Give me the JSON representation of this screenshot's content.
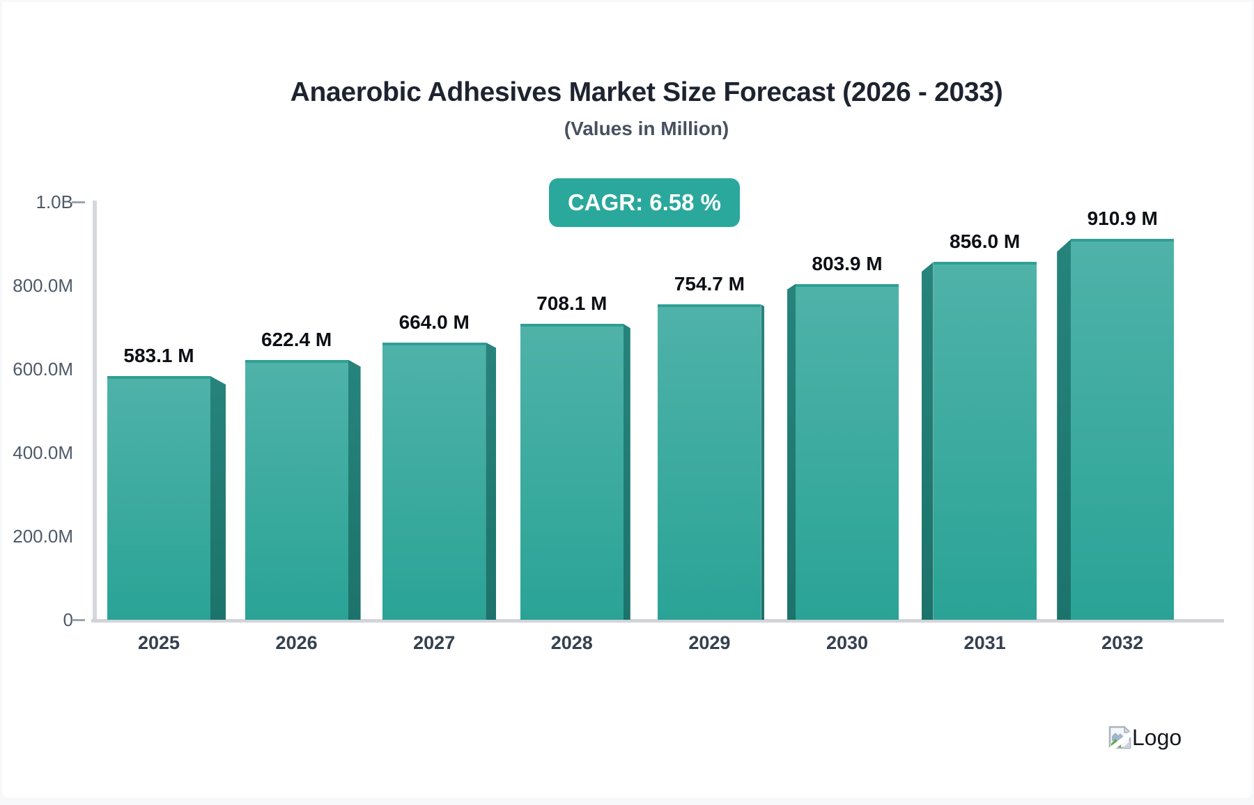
{
  "header": {
    "title": "Anaerobic Adhesives Market Size Forecast (2026 - 2033)",
    "subtitle": "(Values in Million)"
  },
  "footer": {
    "logo_alt": "Logo"
  },
  "chart_data": {
    "type": "bar",
    "title": "Anaerobic Adhesives Market Size Forecast (2026 - 2033)",
    "subtitle": "(Values in Million)",
    "cagr_label": "CAGR: 6.58 %",
    "categories": [
      "2025",
      "2026",
      "2027",
      "2028",
      "2029",
      "2030",
      "2031",
      "2032"
    ],
    "values": [
      583.1,
      622.4,
      664.0,
      708.1,
      754.7,
      803.9,
      856.0,
      910.9
    ],
    "value_labels": [
      "583.1 M",
      "622.4 M",
      "664.0 M",
      "708.1 M",
      "754.7 M",
      "803.9 M",
      "856.0 M",
      "910.9 M"
    ],
    "unit": "Million",
    "ylim": [
      0,
      1000
    ],
    "yticks": [
      {
        "value": 0,
        "label": "0"
      },
      {
        "value": 200,
        "label": "200.0M"
      },
      {
        "value": 400,
        "label": "400.0M"
      },
      {
        "value": 600,
        "label": "600.0M"
      },
      {
        "value": 800,
        "label": "800.0M"
      },
      {
        "value": 1000,
        "label": "1.0B"
      }
    ],
    "grid": false,
    "legend": false,
    "colors": {
      "badge_bg": "#2aa89c",
      "badge_text": "#ffffff",
      "bar_face_top": "#4fb2a9",
      "bar_face_bottom": "#2aa396",
      "bar_top_edge": "#2f9f95",
      "bar_side_top": "#26847c",
      "bar_side_bottom": "#1c736b",
      "axis_line": "#d5d7dc"
    }
  }
}
